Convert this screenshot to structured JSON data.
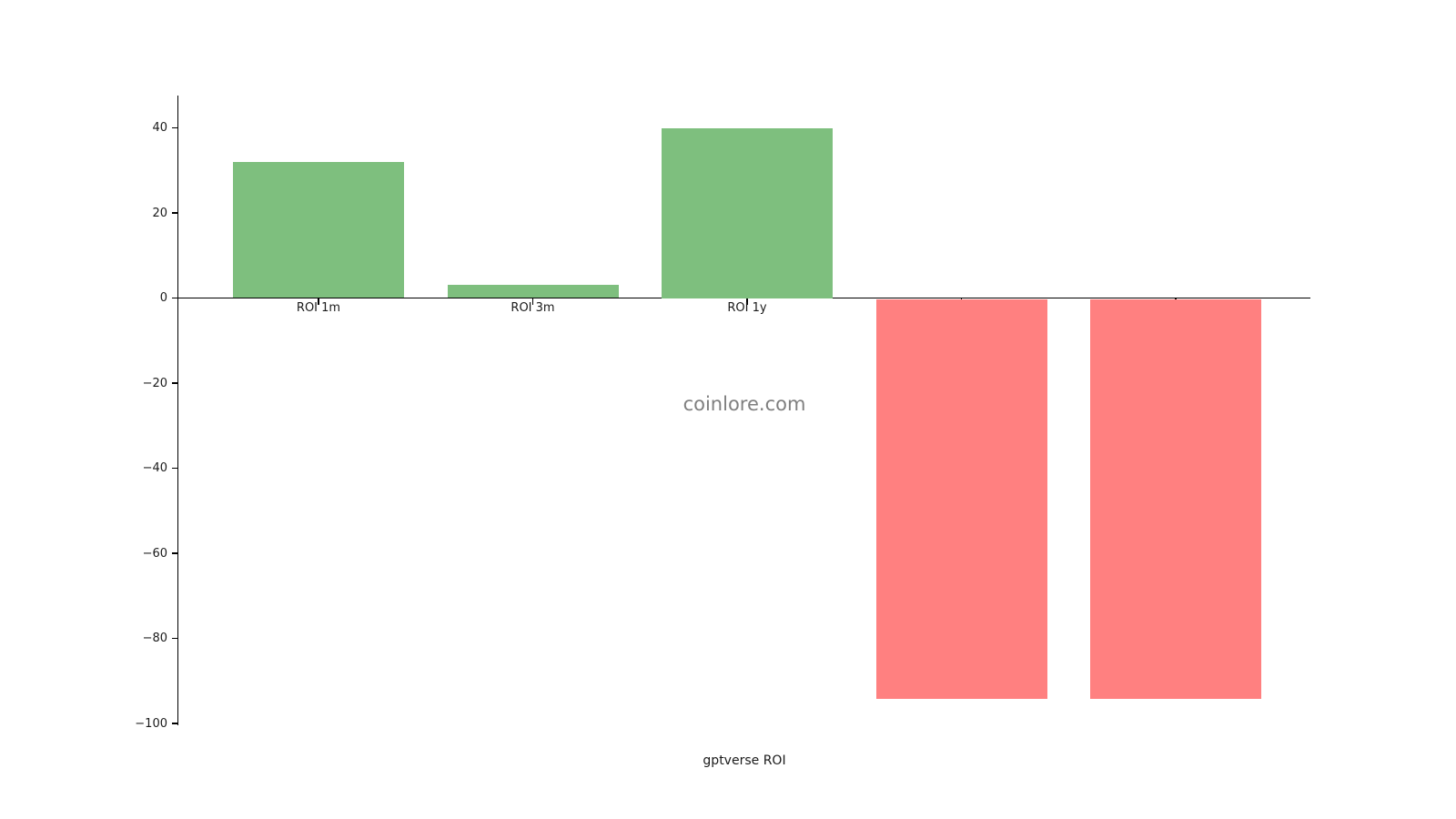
{
  "page": {
    "background": "#ffffff"
  },
  "watermark": {
    "text": "coinlore.com",
    "color": "#7f7f7f"
  },
  "chart_data": {
    "type": "bar",
    "title": "",
    "xlabel": "gptverse ROI",
    "ylabel": "",
    "categories": [
      "ROI 1m",
      "ROI 3m",
      "ROI 1y",
      "",
      ""
    ],
    "values": [
      32,
      3,
      40,
      -94,
      -94
    ],
    "positive_color": "#7ebf7e",
    "negative_color": "#ff8080",
    "axis_color": "#000000",
    "tick_label_color": "#1a1a1a",
    "ylim": [
      -100,
      47
    ],
    "grid": false,
    "legend_position": "none",
    "yticks": [
      {
        "value": 40,
        "label": "40"
      },
      {
        "value": 20,
        "label": "20"
      },
      {
        "value": 0,
        "label": "0"
      },
      {
        "value": -20,
        "label": "−20"
      },
      {
        "value": -40,
        "label": "−40"
      },
      {
        "value": -60,
        "label": "−60"
      },
      {
        "value": -80,
        "label": "−80"
      },
      {
        "value": -100,
        "label": "−100"
      }
    ]
  }
}
